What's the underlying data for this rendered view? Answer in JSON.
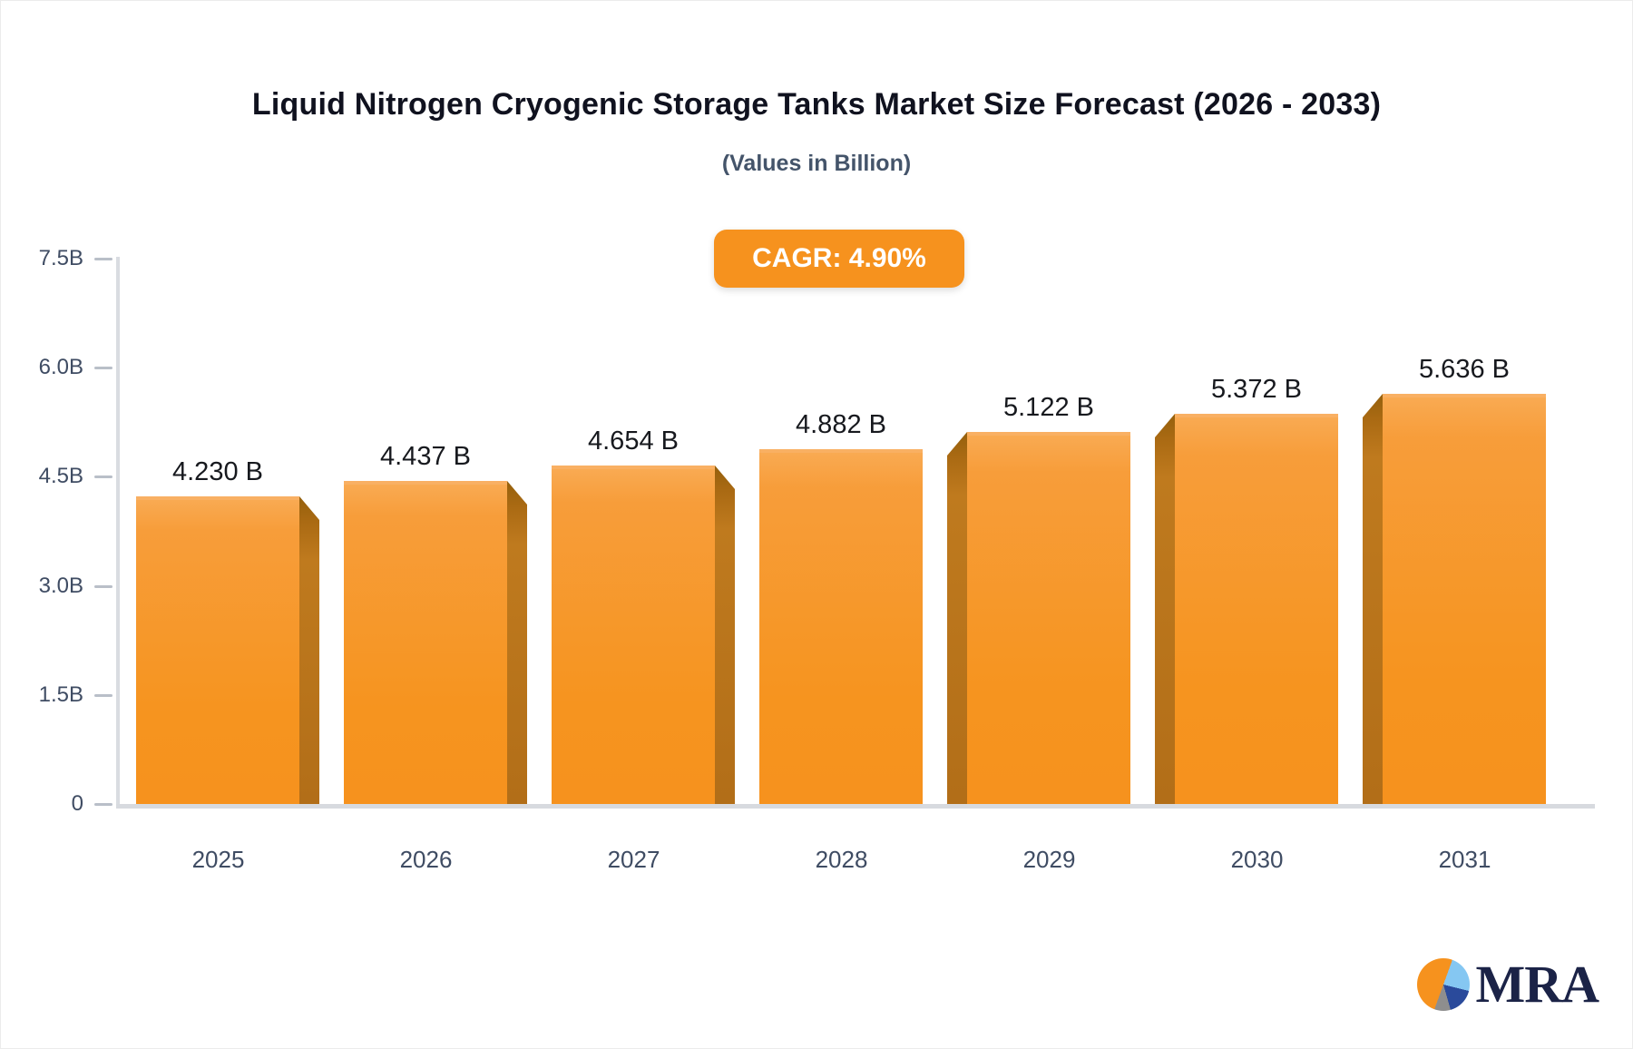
{
  "header": {
    "title": "Liquid Nitrogen Cryogenic Storage Tanks Market Size Forecast (2026 - 2033)",
    "subtitle": "(Values in Billion)",
    "cagr_label": "CAGR: 4.90%"
  },
  "logo": {
    "text": "MRA"
  },
  "colors": {
    "accent_orange": "#f6921e",
    "bar_face_top": "#f9aa52",
    "bar_face_bottom": "#f6921e",
    "bar_side": "#bf7a1e",
    "axis_gray": "#d9dce1",
    "tick_text": "#3f4c63",
    "value_text": "#17191e",
    "badge_text": "#ffffff",
    "logo_navy": "#1b2347"
  },
  "chart_data": {
    "type": "bar",
    "title": "Liquid Nitrogen Cryogenic Storage Tanks Market Size Forecast (2026 - 2033)",
    "subtitle": "(Values in Billion)",
    "xlabel": "",
    "ylabel": "",
    "categories": [
      "2025",
      "2026",
      "2027",
      "2028",
      "2029",
      "2030",
      "2031"
    ],
    "values": [
      4.23,
      4.437,
      4.654,
      4.882,
      5.122,
      5.372,
      5.636
    ],
    "value_labels": [
      "4.230 B",
      "4.437 B",
      "4.654 B",
      "4.882 B",
      "5.122 B",
      "5.372 B",
      "5.636 B"
    ],
    "ytick_labels": [
      "7.5B",
      "6.0B",
      "4.5B",
      "3.0B",
      "1.5B",
      "0"
    ],
    "ytick_values": [
      7.5,
      6.0,
      4.5,
      3.0,
      1.5,
      0
    ],
    "ylim": [
      0,
      7.5
    ],
    "grid": false,
    "legend": "none",
    "annotation": "CAGR: 4.90%",
    "bar_style": "3d-perspective-from-center"
  }
}
